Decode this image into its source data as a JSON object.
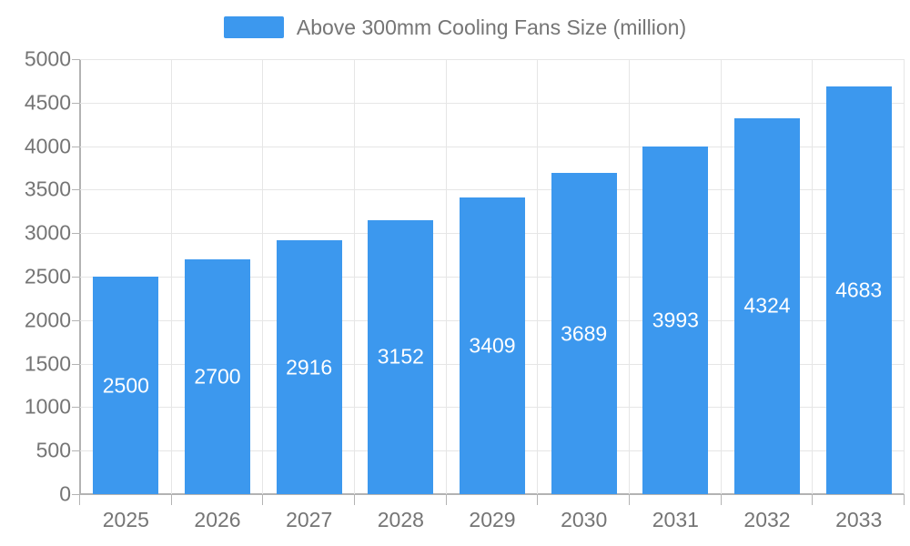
{
  "chart_data": {
    "type": "bar",
    "title": "",
    "legend": "Above 300mm Cooling Fans Size (million)",
    "legend_position": "top-center",
    "categories": [
      "2025",
      "2026",
      "2027",
      "2028",
      "2029",
      "2030",
      "2031",
      "2032",
      "2033"
    ],
    "values": [
      2500,
      2700,
      2916,
      3152,
      3409,
      3689,
      3993,
      4324,
      4683
    ],
    "value_labels": [
      "2500",
      "2700",
      "2916",
      "3152",
      "3409",
      "3689",
      "3993",
      "4324",
      "4683"
    ],
    "value_label_placement": "inside-center",
    "xlabel": "",
    "ylabel": "",
    "ylim": [
      0,
      5000
    ],
    "ytick_step": 500,
    "ytick_labels": [
      "0",
      "500",
      "1000",
      "1500",
      "2000",
      "2500",
      "3000",
      "3500",
      "4000",
      "4500",
      "5000"
    ],
    "grid": true,
    "colors": {
      "bar": "#3c98ee",
      "bar_value_text": "#ffffff",
      "axis_line": "#b3b3b3",
      "grid_line": "#e6e6e6",
      "tick_text": "#757575",
      "legend_text": "#757575",
      "background": "#ffffff"
    }
  }
}
